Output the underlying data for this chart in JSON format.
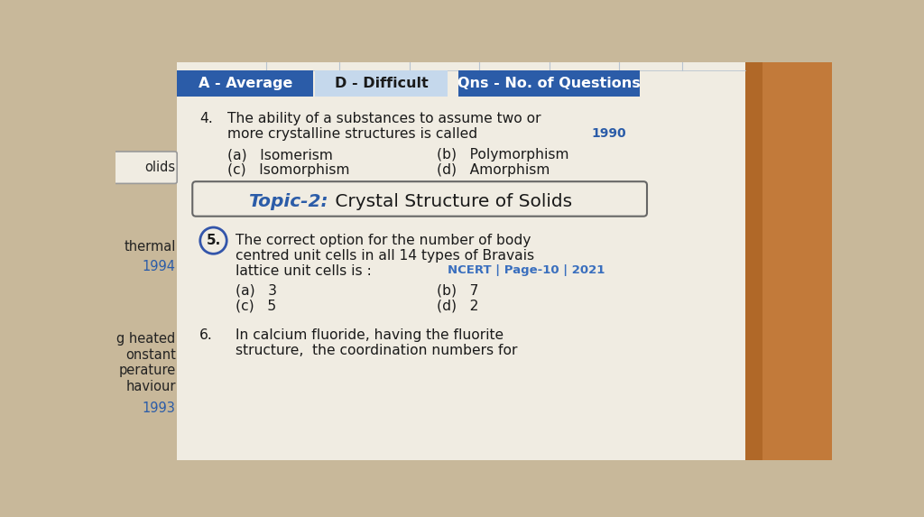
{
  "bg_color": "#c8b89a",
  "page_bg": "#f0ece2",
  "tab1_color": "#2b5ca8",
  "tab2_color": "#c5d8ec",
  "tab3_color": "#2b5ca8",
  "tab1_label": "A - Average",
  "tab2_label": "D - Difficult",
  "tab3_label": "Qns - No. of Questions",
  "grid_color": "#b8c4d0",
  "sidebar_box_color": "#e8e4da",
  "sidebar_items": [
    {
      "text": "olids",
      "yf": 0.735,
      "color": "#222222",
      "box": true
    },
    {
      "text": "thermal",
      "yf": 0.535,
      "color": "#222222",
      "box": false
    },
    {
      "text": "1994",
      "yf": 0.485,
      "color": "#2b5ca8",
      "box": false
    },
    {
      "text": "g heated",
      "yf": 0.305,
      "color": "#222222",
      "box": false
    },
    {
      "text": "onstant",
      "yf": 0.265,
      "color": "#222222",
      "box": false
    },
    {
      "text": "perature",
      "yf": 0.225,
      "color": "#222222",
      "box": false
    },
    {
      "text": "haviour",
      "yf": 0.185,
      "color": "#222222",
      "box": false
    },
    {
      "text": "1993",
      "yf": 0.13,
      "color": "#2b5ca8",
      "box": false
    }
  ],
  "q4_num": "4.",
  "q4_line1": "The ability of a substances to assume two or",
  "q4_line2": "more crystalline structures is called",
  "q4_year": "1990",
  "q4_opts": [
    [
      "(a)",
      "Isomerism",
      "(b)",
      "Polymorphism"
    ],
    [
      "(c)",
      "Isomorphism",
      "(d)",
      "Amorphism"
    ]
  ],
  "topic_bold": "Topic-2:",
  "topic_rest": " Crystal Structure of Solids",
  "q5_num": "5.",
  "q5_line1": "The correct option for the number of body",
  "q5_line2": "centred unit cells in all 14 types of Bravais",
  "q5_line3": "lattice unit cells is :",
  "q5_ref": "NCERT | Page-10 | 2021",
  "q5_opts": [
    [
      "(a)",
      "3",
      "(b)",
      "7"
    ],
    [
      "(c)",
      "5",
      "(d)",
      "2"
    ]
  ],
  "q6_num": "6.",
  "q6_line1": "In calcium fluoride, having the fluorite",
  "q6_line2": "structure,  the coordination numbers for",
  "text_dark": "#1a1a1a",
  "text_blue": "#2b5ca8",
  "text_blue_ref": "#3a6fbe",
  "wood_color1": "#b06828",
  "wood_color2": "#c27a3a"
}
